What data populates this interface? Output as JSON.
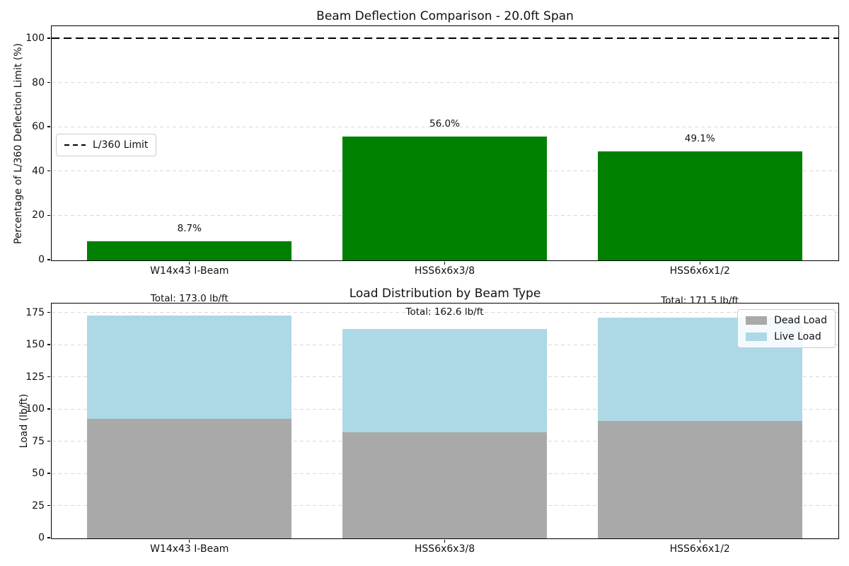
{
  "figure": {
    "background_color": "#ffffff"
  },
  "chart_data": [
    {
      "type": "bar",
      "title": "Beam Deflection Comparison - 20.0ft Span",
      "xlabel": "",
      "ylabel": "Percentage of L/360 Deflection Limit (%)",
      "categories": [
        "W14x43 I-Beam",
        "HSS6x6x3/8",
        "HSS6x6x1/2"
      ],
      "values": [
        8.7,
        56.0,
        49.1
      ],
      "bar_labels": [
        "8.7%",
        "56.0%",
        "49.1%"
      ],
      "bar_color": "#008000",
      "ylim": [
        0,
        105.4
      ],
      "yticks": [
        0,
        20,
        40,
        60,
        80,
        100
      ],
      "ytick_labels": [
        "0",
        "20",
        "40",
        "60",
        "80",
        "100"
      ],
      "grid": "horizontal-dashed",
      "reference_line": {
        "value": 100,
        "style": "dashed",
        "color": "#000000",
        "label": "L/360 Limit"
      },
      "legend": {
        "position": "center-left",
        "entries": [
          {
            "label": "L/360 Limit",
            "marker": "dashed-line",
            "color": "#000000"
          }
        ]
      }
    },
    {
      "type": "stacked-bar",
      "title": "Load Distribution by Beam Type",
      "xlabel": "",
      "ylabel": "Load (lb/ft)",
      "categories": [
        "W14x43 I-Beam",
        "HSS6x6x3/8",
        "HSS6x6x1/2"
      ],
      "series": [
        {
          "name": "Dead Load",
          "color": "#a9a9a9",
          "values": [
            93.0,
            82.6,
            91.5
          ]
        },
        {
          "name": "Live Load",
          "color": "#add8e6",
          "values": [
            80.0,
            80.0,
            80.0
          ]
        }
      ],
      "totals": [
        173.0,
        162.6,
        171.5
      ],
      "total_labels": [
        "Total: 173.0 lb/ft",
        "Total: 162.6 lb/ft",
        "Total: 171.5 lb/ft"
      ],
      "ylim": [
        0,
        182
      ],
      "yticks": [
        0,
        25,
        50,
        75,
        100,
        125,
        150,
        175
      ],
      "ytick_labels": [
        "0",
        "25",
        "50",
        "75",
        "100",
        "125",
        "150",
        "175"
      ],
      "grid": "horizontal-dashed",
      "legend": {
        "position": "top-right",
        "entries": [
          {
            "label": "Dead Load",
            "marker": "patch",
            "color": "#a9a9a9"
          },
          {
            "label": "Live Load",
            "marker": "patch",
            "color": "#add8e6"
          }
        ]
      }
    }
  ]
}
